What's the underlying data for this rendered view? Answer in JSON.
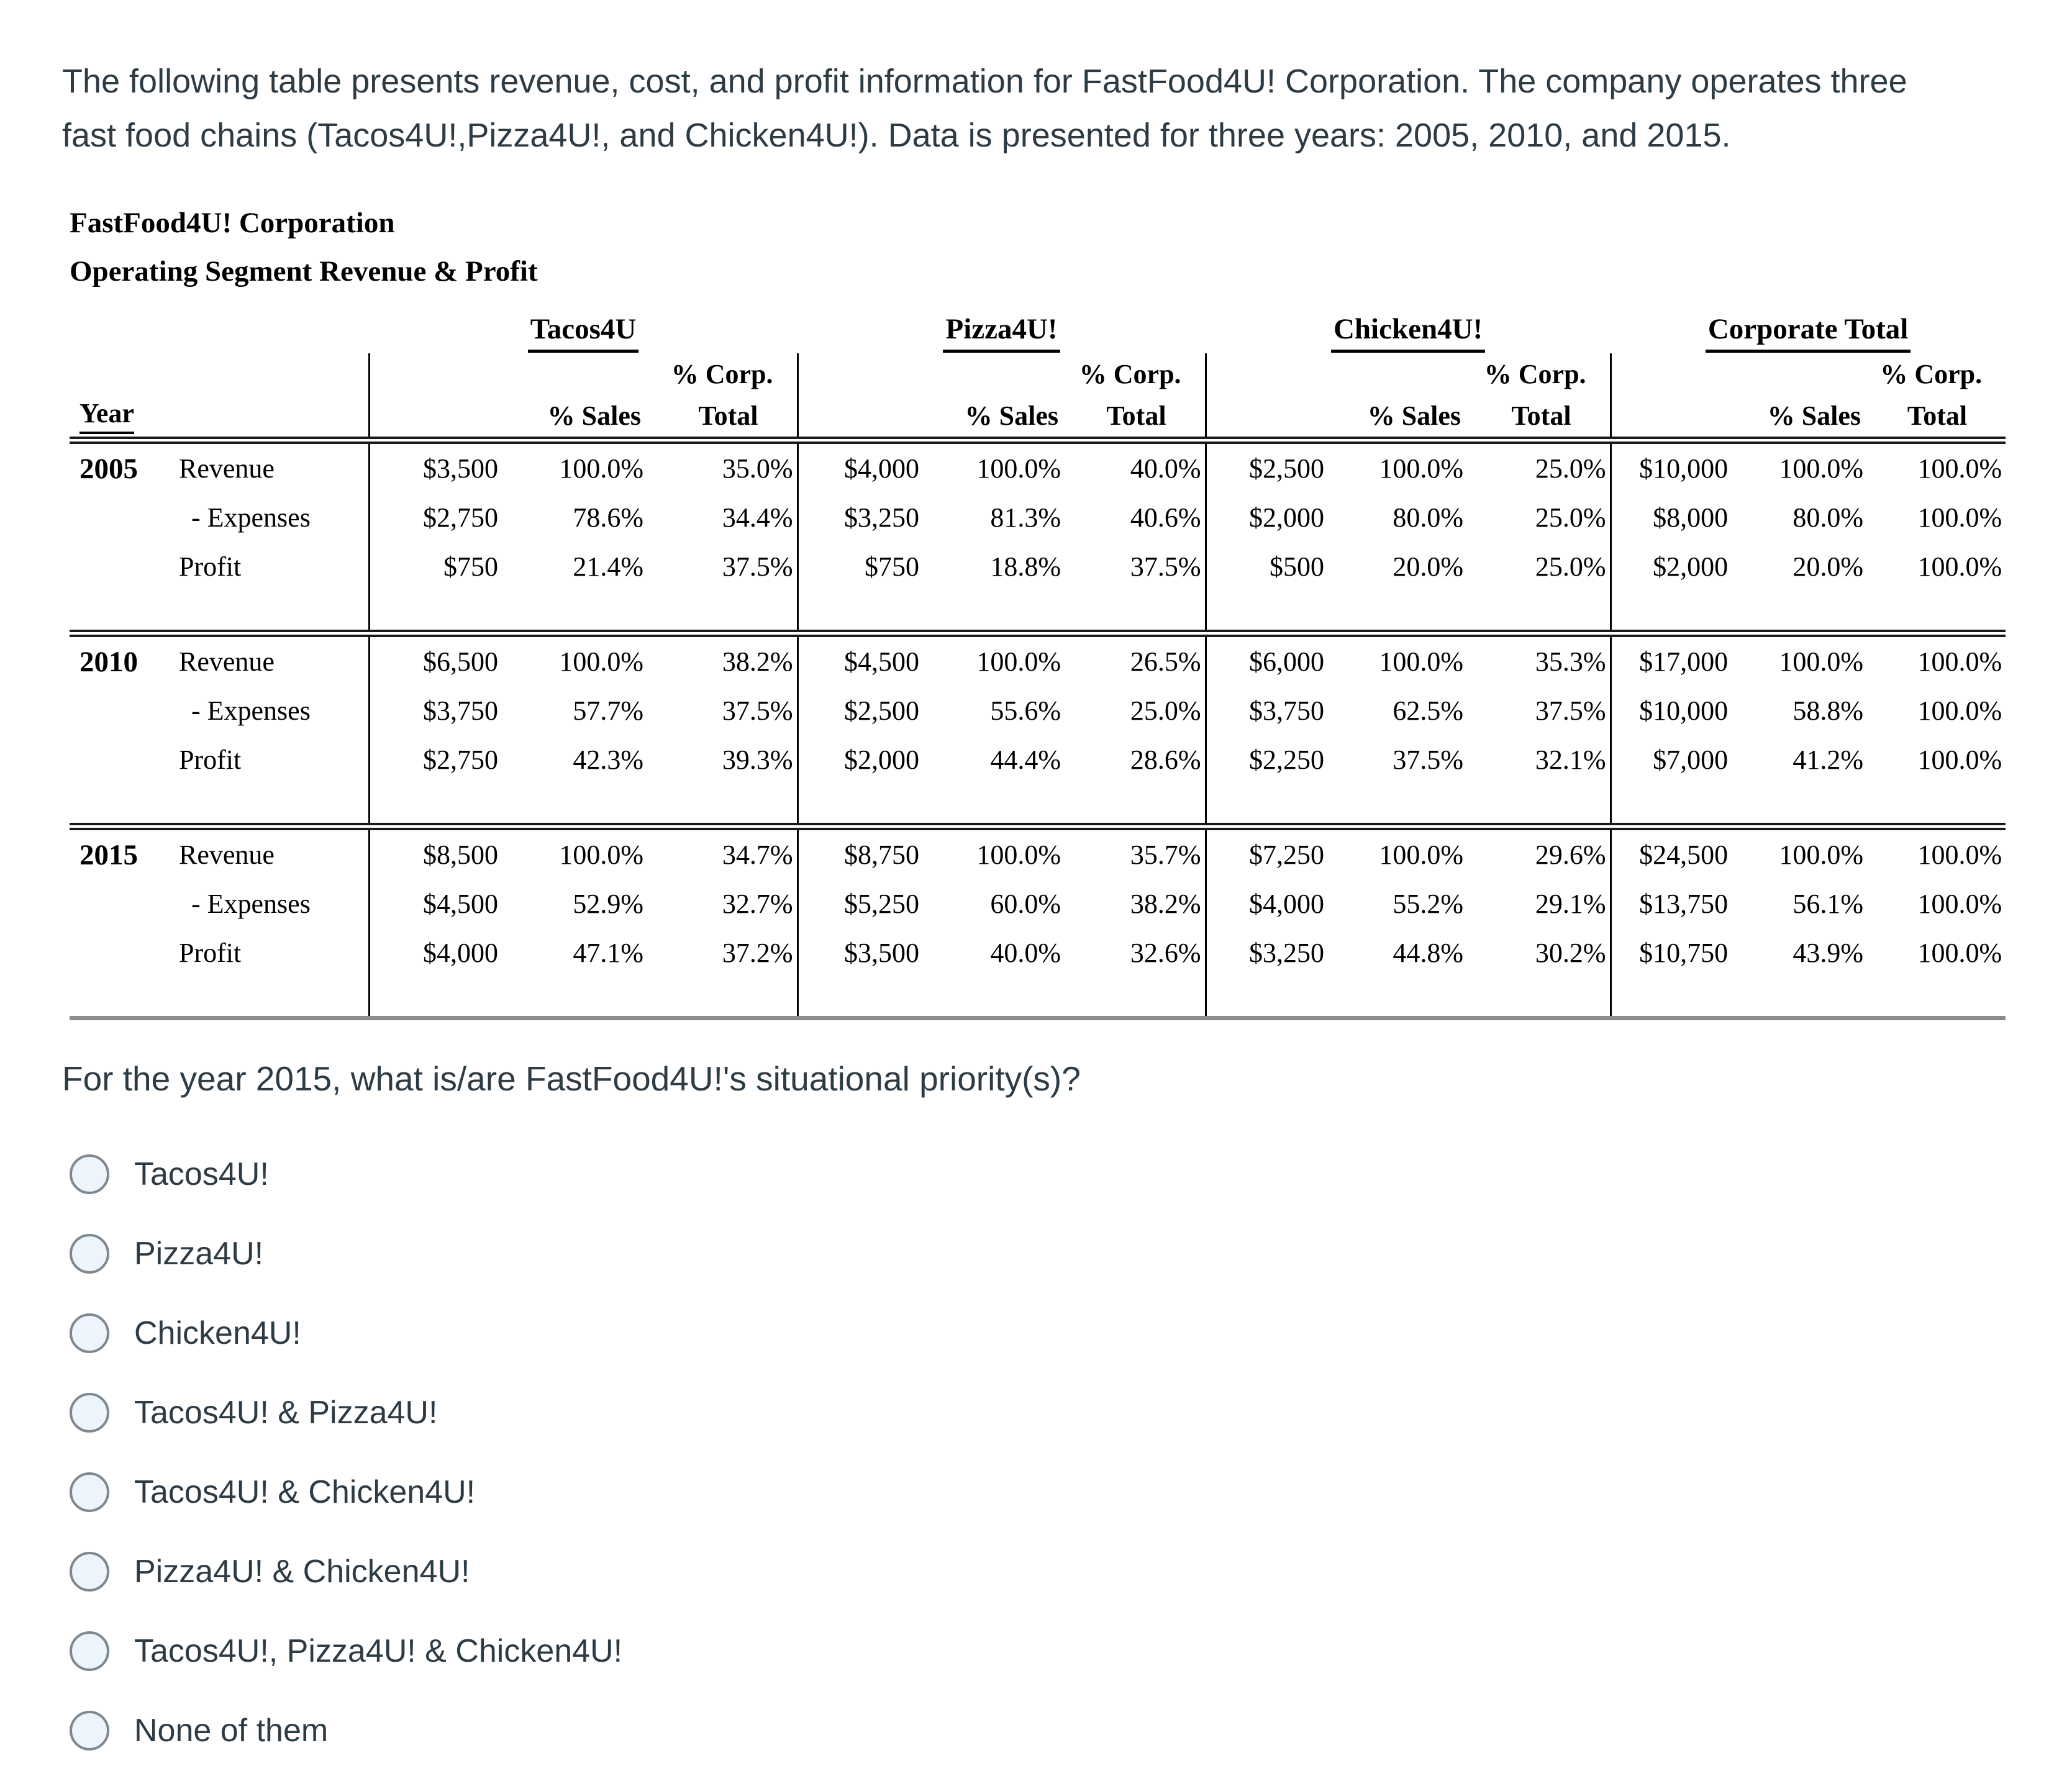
{
  "intro": {
    "line1": "The following table presents revenue, cost, and profit information for FastFood4U! Corporation. The company operates three",
    "line2": "fast food chains (Tacos4U!,Pizza4U!, and Chicken4U!). Data is presented for three years: 2005, 2010, and 2015."
  },
  "table": {
    "title1": "FastFood4U! Corporation",
    "title2": "Operating Segment Revenue & Profit",
    "year_header": "Year",
    "groups": [
      {
        "name": "Tacos4U"
      },
      {
        "name": "Pizza4U!"
      },
      {
        "name": "Chicken4U!"
      },
      {
        "name": "Corporate Total"
      }
    ],
    "subheader": {
      "pct_corp": "% Corp.",
      "pct_sales": "% Sales",
      "total": "Total"
    },
    "years": [
      {
        "year": "2005",
        "rows": [
          {
            "label": "Revenue",
            "values": [
              "$3,500",
              "100.0%",
              "35.0%",
              "$4,000",
              "100.0%",
              "40.0%",
              "$2,500",
              "100.0%",
              "25.0%",
              "$10,000",
              "100.0%",
              "100.0%"
            ]
          },
          {
            "label": "- Expenses",
            "values": [
              "$2,750",
              "78.6%",
              "34.4%",
              "$3,250",
              "81.3%",
              "40.6%",
              "$2,000",
              "80.0%",
              "25.0%",
              "$8,000",
              "80.0%",
              "100.0%"
            ]
          },
          {
            "label": "Profit",
            "values": [
              "$750",
              "21.4%",
              "37.5%",
              "$750",
              "18.8%",
              "37.5%",
              "$500",
              "20.0%",
              "25.0%",
              "$2,000",
              "20.0%",
              "100.0%"
            ]
          }
        ]
      },
      {
        "year": "2010",
        "rows": [
          {
            "label": "Revenue",
            "values": [
              "$6,500",
              "100.0%",
              "38.2%",
              "$4,500",
              "100.0%",
              "26.5%",
              "$6,000",
              "100.0%",
              "35.3%",
              "$17,000",
              "100.0%",
              "100.0%"
            ]
          },
          {
            "label": "- Expenses",
            "values": [
              "$3,750",
              "57.7%",
              "37.5%",
              "$2,500",
              "55.6%",
              "25.0%",
              "$3,750",
              "62.5%",
              "37.5%",
              "$10,000",
              "58.8%",
              "100.0%"
            ]
          },
          {
            "label": "Profit",
            "values": [
              "$2,750",
              "42.3%",
              "39.3%",
              "$2,000",
              "44.4%",
              "28.6%",
              "$2,250",
              "37.5%",
              "32.1%",
              "$7,000",
              "41.2%",
              "100.0%"
            ]
          }
        ]
      },
      {
        "year": "2015",
        "rows": [
          {
            "label": "Revenue",
            "values": [
              "$8,500",
              "100.0%",
              "34.7%",
              "$8,750",
              "100.0%",
              "35.7%",
              "$7,250",
              "100.0%",
              "29.6%",
              "$24,500",
              "100.0%",
              "100.0%"
            ]
          },
          {
            "label": "- Expenses",
            "values": [
              "$4,500",
              "52.9%",
              "32.7%",
              "$5,250",
              "60.0%",
              "38.2%",
              "$4,000",
              "55.2%",
              "29.1%",
              "$13,750",
              "56.1%",
              "100.0%"
            ]
          },
          {
            "label": "Profit",
            "values": [
              "$4,000",
              "47.1%",
              "37.2%",
              "$3,500",
              "40.0%",
              "32.6%",
              "$3,250",
              "44.8%",
              "30.2%",
              "$10,750",
              "43.9%",
              "100.0%"
            ]
          }
        ]
      }
    ]
  },
  "question": "For the year 2015, what is/are FastFood4U!'s situational priority(s)?",
  "options": [
    "Tacos4U!",
    "Pizza4U!",
    "Chicken4U!",
    "Tacos4U! & Pizza4U!",
    "Tacos4U! & Chicken4U!",
    "Pizza4U! & Chicken4U!",
    "Tacos4U!, Pizza4U! & Chicken4U!",
    "None of them"
  ],
  "colors": {
    "body_text": "#2D3B45",
    "table_text": "#000000",
    "table_rule_dark": "#1a1a1a",
    "table_bottom_rule": "#8c8c8c",
    "radio_border": "#7e8890",
    "radio_fill": "#eef4fb"
  }
}
